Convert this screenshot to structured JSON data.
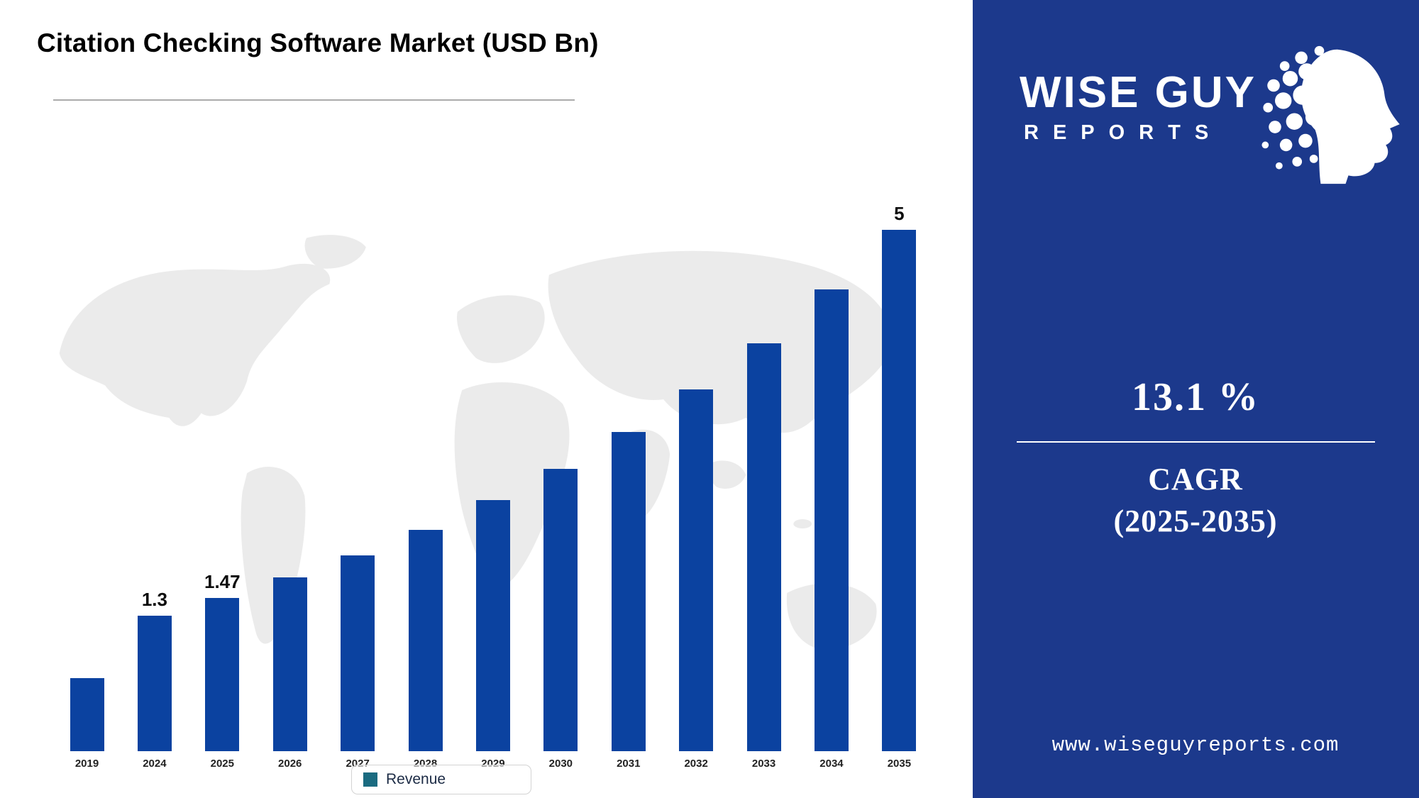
{
  "title": "Citation Checking Software Market (USD Bn)",
  "chart_data": {
    "type": "bar",
    "title": "Citation Checking Software Market (USD Bn)",
    "xlabel": "",
    "ylabel": "",
    "ylim": [
      0,
      5
    ],
    "grid": false,
    "legend_position": "bottom",
    "legend": [
      "Revenue"
    ],
    "categories": [
      "2019",
      "2024",
      "2025",
      "2026",
      "2027",
      "2028",
      "2029",
      "2030",
      "2031",
      "2032",
      "2033",
      "2034",
      "2035"
    ],
    "values": [
      0.7,
      1.3,
      1.47,
      1.67,
      1.88,
      2.12,
      2.41,
      2.71,
      3.06,
      3.47,
      3.91,
      4.43,
      5
    ],
    "value_labels": [
      "",
      "1.3",
      "1.47",
      "",
      "",
      "",
      "",
      "",
      "",
      "",
      "",
      "",
      "5"
    ],
    "bar_color": "#0b42a0",
    "legend_color": "#1a6b80"
  },
  "sidebar": {
    "logo_line1": "WISE GUY",
    "logo_line2": "REPORTS",
    "cagr_value": "13.1 %",
    "cagr_label": "CAGR",
    "cagr_period": "(2025-2035)",
    "website": "www.wiseguyreports.com",
    "bg_color": "#1c398c"
  }
}
